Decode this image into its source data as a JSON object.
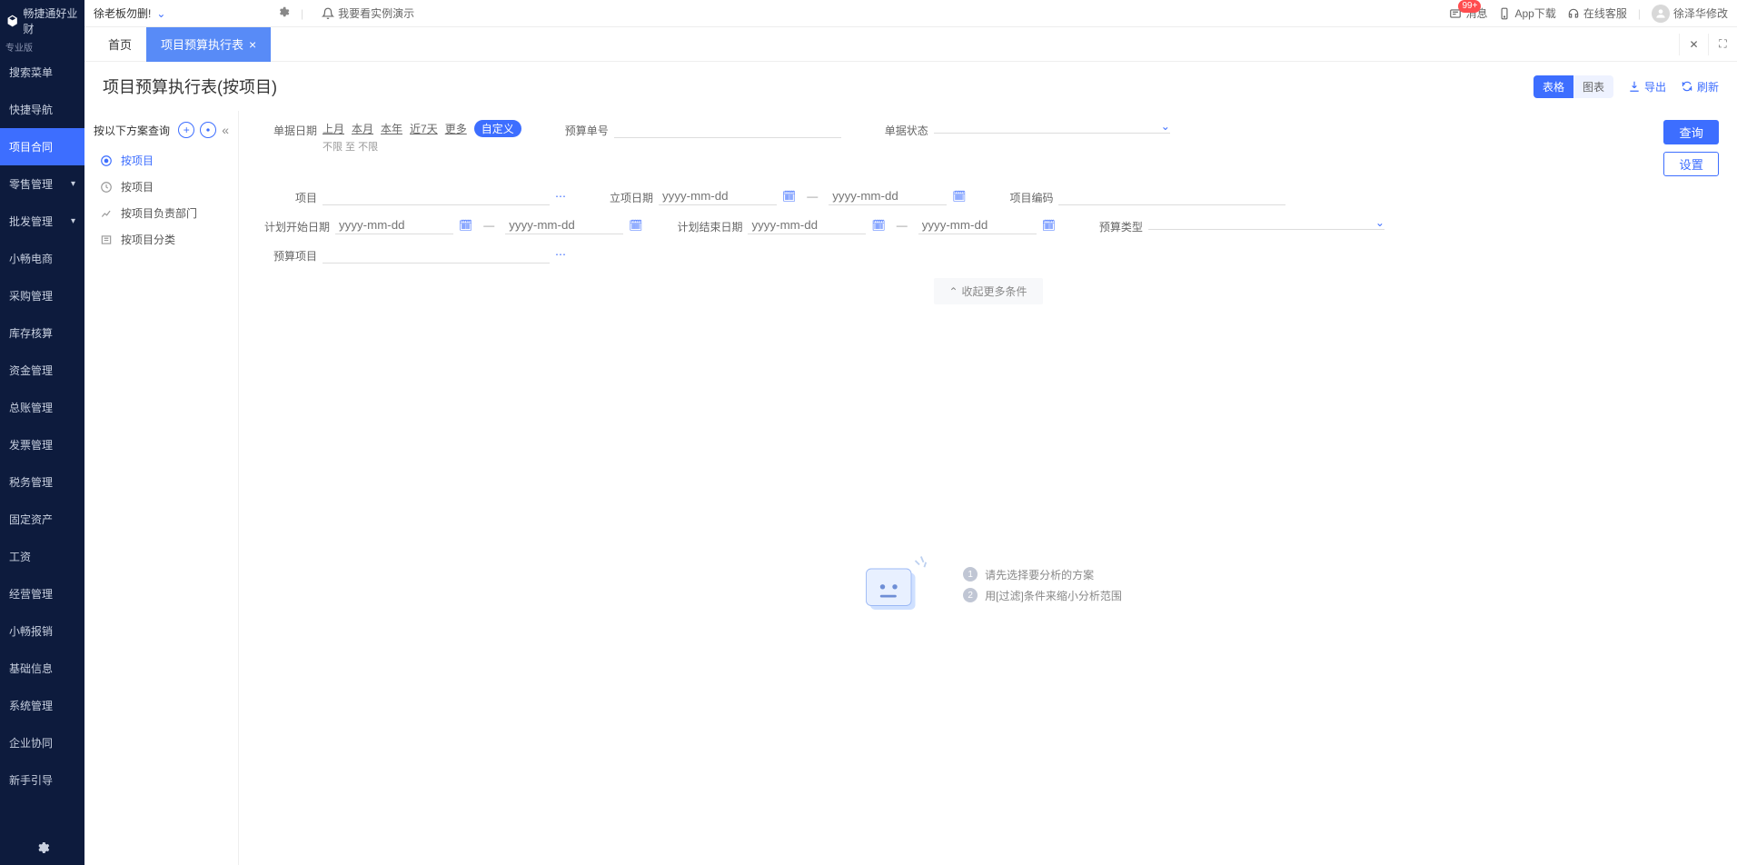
{
  "brand": {
    "name": "畅捷通好业财",
    "edition": "专业版"
  },
  "topbar": {
    "company": "徐老板勿删!",
    "demo": "我要看实例演示",
    "messages": {
      "label": "消息",
      "badge": "99+"
    },
    "download": "App下载",
    "support": "在线客服",
    "user": "徐泽华修改"
  },
  "sidebar": {
    "items": [
      {
        "label": "搜索菜单",
        "expand": false
      },
      {
        "label": "快捷导航",
        "expand": false
      },
      {
        "label": "项目合同",
        "expand": false,
        "active": true
      },
      {
        "label": "零售管理",
        "expand": true
      },
      {
        "label": "批发管理",
        "expand": true
      },
      {
        "label": "小畅电商",
        "expand": false
      },
      {
        "label": "采购管理",
        "expand": false
      },
      {
        "label": "库存核算",
        "expand": false
      },
      {
        "label": "资金管理",
        "expand": false
      },
      {
        "label": "总账管理",
        "expand": false
      },
      {
        "label": "发票管理",
        "expand": false
      },
      {
        "label": "税务管理",
        "expand": false
      },
      {
        "label": "固定资产",
        "expand": false
      },
      {
        "label": "工资",
        "expand": false
      },
      {
        "label": "经营管理",
        "expand": false
      },
      {
        "label": "小畅报销",
        "expand": false
      },
      {
        "label": "基础信息",
        "expand": false
      },
      {
        "label": "系统管理",
        "expand": false
      },
      {
        "label": "企业协同",
        "expand": false
      },
      {
        "label": "新手引导",
        "expand": false
      }
    ]
  },
  "tabs": {
    "home": "首页",
    "active": "项目预算执行表"
  },
  "page": {
    "title": "项目预算执行表(按项目)",
    "view_table": "表格",
    "view_chart": "图表",
    "export": "导出",
    "refresh": "刷新"
  },
  "scheme": {
    "title": "按以下方案查询",
    "items": [
      {
        "label": "按项目",
        "active": true,
        "icon": "target"
      },
      {
        "label": "按项目",
        "icon": "clock"
      },
      {
        "label": "按项目负责部门",
        "icon": "chart"
      },
      {
        "label": "按项目分类",
        "icon": "list"
      }
    ]
  },
  "filters": {
    "bill_date": {
      "label": "单据日期",
      "presets": [
        "上月",
        "本月",
        "本年",
        "近7天",
        "更多"
      ],
      "custom": "自定义",
      "range": "不限 至 不限"
    },
    "budget_no": {
      "label": "预算单号"
    },
    "bill_status": {
      "label": "单据状态"
    },
    "project": {
      "label": "项目"
    },
    "setup_date": {
      "label": "立项日期",
      "placeholder": "yyyy-mm-dd"
    },
    "project_code": {
      "label": "项目编码"
    },
    "plan_start": {
      "label": "计划开始日期",
      "placeholder": "yyyy-mm-dd"
    },
    "plan_end": {
      "label": "计划结束日期",
      "placeholder": "yyyy-mm-dd"
    },
    "budget_type": {
      "label": "预算类型"
    },
    "budget_item": {
      "label": "预算项目"
    },
    "query_btn": "查询",
    "settings_btn": "设置",
    "collapse": "收起更多条件"
  },
  "empty": {
    "step1": "请先选择要分析的方案",
    "step2": "用[过滤]条件来缩小分析范围"
  },
  "colors": {
    "primary": "#3d6eff",
    "sidebar_bg": "#0d1b3d",
    "tab_active": "#588BF7",
    "badge": "#ff4d4f",
    "text_muted": "#888"
  }
}
